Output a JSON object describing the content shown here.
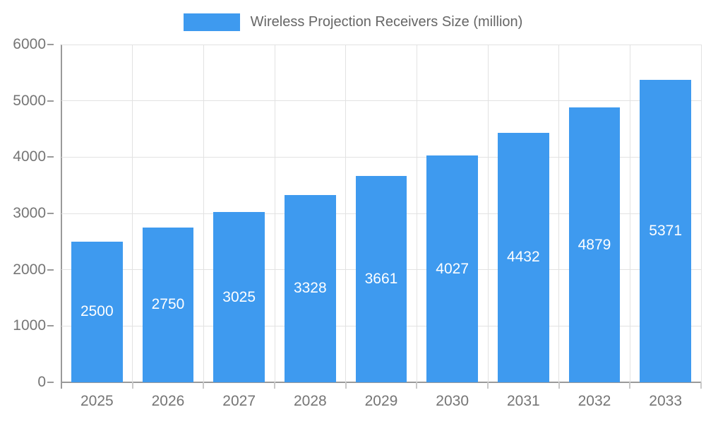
{
  "chart_data": {
    "type": "bar",
    "title": "Wireless Projection Receivers Size (million)",
    "legend": [
      "Wireless Projection Receivers Size (million)"
    ],
    "legend_position": "top-center",
    "categories": [
      "2025",
      "2026",
      "2027",
      "2028",
      "2029",
      "2030",
      "2031",
      "2032",
      "2033"
    ],
    "series": [
      {
        "name": "Wireless Projection Receivers Size (million)",
        "values": [
          2500,
          2750,
          3025,
          3328,
          3661,
          4027,
          4432,
          4879,
          5371
        ]
      }
    ],
    "value_labels": "inside-center-white",
    "xlabel": "",
    "ylabel": "",
    "ylim": [
      0,
      6000
    ],
    "yticks": [
      0,
      1000,
      2000,
      3000,
      4000,
      5000,
      6000
    ],
    "grid": true,
    "colors": {
      "bar": "#3E9AEF",
      "grid_line": "#E2E2E2",
      "axis_line": "#9A9A9A",
      "x_tick_mark": "#C9C9C9",
      "tick_label_text": "#757575",
      "legend_text": "#666666",
      "value_label_text": "#FFFFFF",
      "background": "#FFFFFF"
    }
  }
}
